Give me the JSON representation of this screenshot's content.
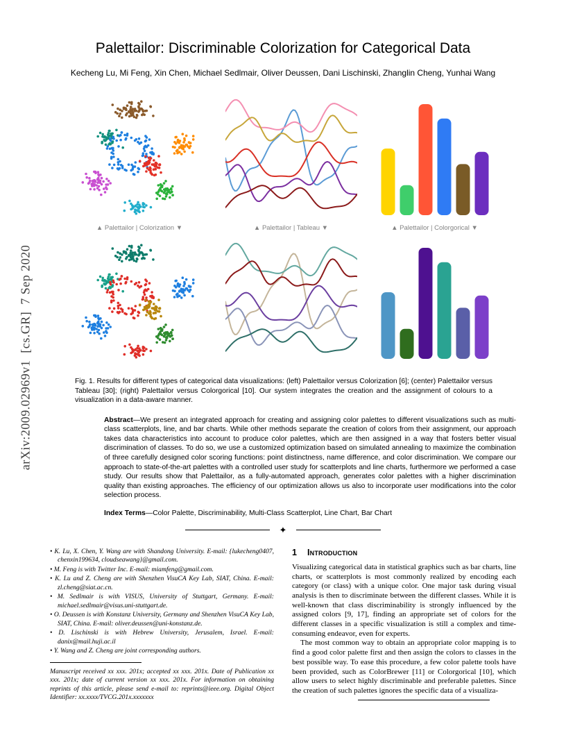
{
  "page": {
    "arxiv_label": "arXiv:2009.02969v1  [cs.GR]  7 Sep 2020",
    "title": "Palettailor: Discriminable Colorization for Categorical Data",
    "authors": "Kecheng Lu, Mi Feng, Xin Chen, Michael Sedlmair, Oliver Deussen, Dani Lischinski, Zhanglin Cheng, Yunhai Wang"
  },
  "figure": {
    "labels": [
      "▲ Palettailor | Colorization ▼",
      "▲ Palettailor | Tableau ▼",
      "▲ Palettailor | Colorgorical ▼"
    ],
    "caption": "Fig. 1.  Results for different types of categorical data visualizations: (left) Palettailor versus Colorization [6]; (center) Palettailor versus Tableau [30]; (right) Palettailor versus Colorgorical [10].  Our system integrates the creation and the assignment of colours to a visualization in a data-aware manner.",
    "chart_data": {
      "scatter": {
        "type": "scatter",
        "seed": 42,
        "clusters": [
          {
            "x": 0.46,
            "y": 0.1,
            "rx": 0.16,
            "ry": 0.07,
            "n": 65
          },
          {
            "x": 0.24,
            "y": 0.33,
            "rx": 0.1,
            "ry": 0.09,
            "n": 40
          },
          {
            "x": 0.42,
            "y": 0.45,
            "ring": true,
            "r": 0.145,
            "w": 0.05,
            "n": 90
          },
          {
            "x": 0.84,
            "y": 0.38,
            "rx": 0.09,
            "ry": 0.1,
            "n": 45
          },
          {
            "x": 0.6,
            "y": 0.57,
            "rx": 0.09,
            "ry": 0.08,
            "n": 50
          },
          {
            "x": 0.7,
            "y": 0.78,
            "rx": 0.11,
            "ry": 0.08,
            "n": 50
          },
          {
            "x": 0.16,
            "y": 0.7,
            "rx": 0.1,
            "ry": 0.1,
            "n": 55
          },
          {
            "x": 0.48,
            "y": 0.91,
            "rx": 0.11,
            "ry": 0.05,
            "n": 40
          }
        ],
        "palette_top": [
          "#8A5A2B",
          "#12907E",
          "#1E7FE0",
          "#FF8C00",
          "#E33127",
          "#2BB33B",
          "#C94FD1",
          "#22AECC"
        ],
        "palette_bottom": [
          "#0E7C6B",
          "#18A089",
          "#DF2E28",
          "#1E7FE0",
          "#B8860B",
          "#2E8B2E",
          "#1E7FE0",
          "#DF2E28"
        ]
      },
      "lines": {
        "type": "line",
        "seed": 7,
        "series": [
          {
            "base": 0.45,
            "a": [
              0.27,
              0.1,
              0.05
            ],
            "f": [
              1.6,
              3.2,
              5.1
            ]
          },
          {
            "base": 0.18,
            "a": [
              0.09,
              0.06,
              0.03
            ],
            "f": [
              1.2,
              2.6,
              4.3
            ]
          },
          {
            "base": 0.29,
            "a": [
              0.08,
              0.05,
              0.03
            ],
            "f": [
              1.5,
              3.1,
              5.2
            ]
          },
          {
            "base": 0.54,
            "a": [
              0.1,
              0.06,
              0.04
            ],
            "f": [
              1.3,
              2.2,
              3.7
            ]
          },
          {
            "base": 0.71,
            "a": [
              0.09,
              0.07,
              0.04
            ],
            "f": [
              1.4,
              2.8,
              4.6
            ]
          },
          {
            "base": 0.83,
            "a": [
              0.07,
              0.05,
              0.03
            ],
            "f": [
              1.1,
              2.4,
              3.9
            ]
          }
        ],
        "palette_top": [
          "#5B9BD5",
          "#F48FB1",
          "#C7A63A",
          "#D93025",
          "#7B2FA0",
          "#8B1A1A"
        ],
        "palette_bottom": [
          "#C4B59A",
          "#63A8A0",
          "#8B1A1A",
          "#6B3FA0",
          "#8A94B8",
          "#2E6F68"
        ]
      },
      "bars": {
        "type": "bar",
        "values": [
          0.6,
          0.27,
          1.0,
          0.87,
          0.46,
          0.57
        ],
        "palette_top": [
          "#FFD400",
          "#3FCE6B",
          "#FF5536",
          "#2F7BF4",
          "#7A5B27",
          "#6C2EBF"
        ],
        "palette_bottom": [
          "#4E96C6",
          "#2F6D1E",
          "#4E1190",
          "#2AA392",
          "#5A5FA8",
          "#7C3FC9"
        ]
      }
    }
  },
  "abstract": {
    "heading": "Abstract",
    "text": "—We present an integrated approach for creating and assigning color palettes to different visualizations such as multi-class scatterplots, line, and bar charts. While other methods separate the creation of colors from their assignment, our approach takes data characteristics into account to produce color palettes, which are then assigned in a way that fosters better visual discrimination of classes. To do so, we use a customized optimization based on simulated annealing to maximize the combination of three carefully designed color scoring functions: point distinctness, name difference, and color discrimination. We compare our approach to state-of-the-art palettes with a controlled user study for scatterplots and line charts, furthermore we performed a case study. Our results show that Palettailor, as a fully-automated approach, generates color palettes with a higher discrimination quality than existing approaches. The efficiency of our optimization allows us also to incorporate user modifications into the color selection process."
  },
  "index_terms": {
    "heading": "Index Terms",
    "text": "—Color Palette, Discriminability, Multi-Class Scatterplot, Line Chart, Bar Chart"
  },
  "divider_ornament": "✦",
  "footnotes": {
    "items": [
      "K. Lu, X. Chen, Y. Wang are with Shandong University. E-mail: {lukecheng0407, chenxin199634, cloudseawang}@gmail.com.",
      "M. Feng is with Twitter Inc. E-mail: miamfeng@gmail.com.",
      "K. Lu and Z. Cheng are with Shenzhen VisuCA Key Lab, SIAT, China. E-mail: zl.cheng@siat.ac.cn.",
      "M. Sedlmair is with VISUS, University of Stuttgart, Germany. E-mail: michael.sedlmair@visus.uni-stuttgart.de.",
      "O. Deussen is with Konstanz University, Germany and Shenzhen VisuCA Key Lab, SIAT, China. E-mail: oliver.deussen@uni-konstanz.de.",
      "D. Lischinski is with Hebrew University, Jerusalem, Israel. E-mail: danix@mail.huji.ac.il",
      "Y. Wang and Z. Cheng are joint corresponding authors."
    ],
    "manuscript": "Manuscript received xx xxx. 201x; accepted xx xxx. 201x. Date of Publication xx xxx. 201x; date of current version xx xxx. 201x. For information on obtaining reprints of this article, please send e-mail to: reprints@ieee.org. Digital Object Identifier: xx.xxxx/TVCG.201x.xxxxxxx"
  },
  "introduction": {
    "number": "1",
    "title": "Introduction",
    "paragraphs": [
      "Visualizing categorical data in statistical graphics such as bar charts, line charts, or scatterplots is most commonly realized by encoding each category (or class) with a unique color. One major task during visual analysis is then to discriminate between the different classes. While it is well-known that class discriminability is strongly influenced by the assigned colors [9, 17], finding an appropriate set of colors for the different classes in a specific visualization is still a complex and time-consuming endeavor, even for experts.",
      "The most common way to obtain an appropriate color mapping is to find a good color palette first and then assign the colors to classes in the best possible way. To ease this procedure, a few color palette tools have been provided, such as ColorBrewer [11] or Colorgorical [10], which allow users to select highly discriminable and preferable palettes. Since the creation of such palettes ignores the specific data of a visualiza-"
    ]
  }
}
